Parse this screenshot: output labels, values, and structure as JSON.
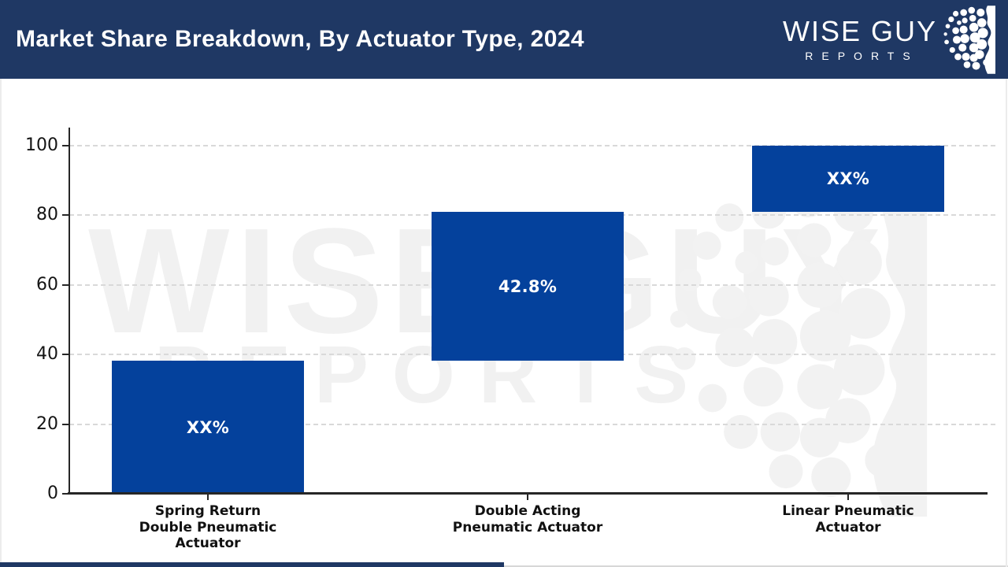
{
  "header": {
    "title": "Market Share Breakdown, By Actuator Type, 2024",
    "logo": {
      "line1": "WISE GUY",
      "line2": "REPORTS"
    }
  },
  "watermark": {
    "line1": "WISE GUY",
    "line2": "REPORTS"
  },
  "colors": {
    "header_bg": "#1f3864",
    "bar": "#04419c",
    "bar_label": "#ffffff",
    "grid": "#d9d9d9",
    "axis": "#262626"
  },
  "chart_data": {
    "type": "bar",
    "subtype": "waterfall",
    "title": "Market Share Breakdown, By Actuator Type, 2024",
    "categories": [
      "Spring Return\nDouble Pneumatic\nActuator",
      "Double Acting\nPneumatic Actuator",
      "Linear Pneumatic\nActuator"
    ],
    "segments": [
      {
        "category": "Spring Return Double Pneumatic Actuator",
        "start": 0,
        "end": 38.2,
        "label": "XX%"
      },
      {
        "category": "Double Acting Pneumatic Actuator",
        "start": 38.2,
        "end": 81,
        "label": "42.8%"
      },
      {
        "category": "Linear Pneumatic Actuator",
        "start": 81,
        "end": 100,
        "label": "XX%"
      }
    ],
    "ylim": [
      0,
      100
    ],
    "yticks": [
      0,
      20,
      40,
      60,
      80,
      100
    ],
    "grid": "horizontal-dashed",
    "legend": "none",
    "xlabel": "",
    "ylabel": ""
  }
}
